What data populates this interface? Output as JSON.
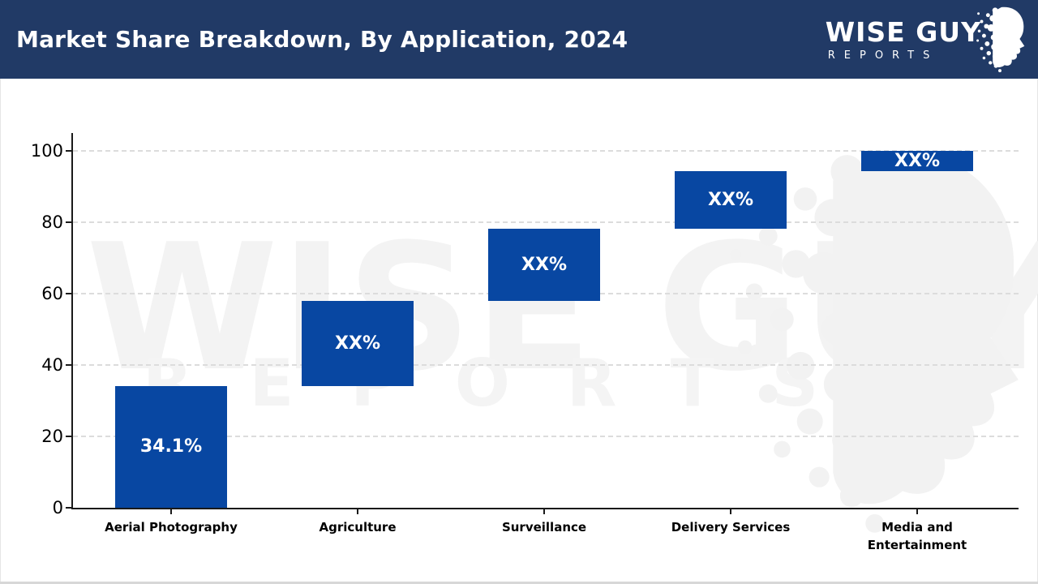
{
  "header": {
    "title": "Market Share Breakdown, By Application, 2024",
    "bg_color": "#213a66",
    "logo": {
      "line1": "WISE GUY",
      "line2": "REPORTS"
    }
  },
  "watermark": {
    "line1": "WISE GUY",
    "line2": "REPORTS"
  },
  "chart_data": {
    "type": "bar",
    "subtype": "waterfall",
    "title": "Market Share Breakdown, By Application, 2024",
    "categories": [
      "Aerial Photography",
      "Agriculture",
      "Surveillance",
      "Delivery Services",
      "Media and Entertainment"
    ],
    "tick_labels": [
      "Aerial Photography",
      "Agriculture",
      "Surveillance",
      "Delivery Services",
      "Media and\nEntertainment"
    ],
    "segments": [
      {
        "category": "Aerial Photography",
        "start": 0,
        "end": 34.1,
        "value": 34.1,
        "label": "34.1%"
      },
      {
        "category": "Agriculture",
        "start": 34.1,
        "end": 58.0,
        "value": 23.9,
        "label": "XX%"
      },
      {
        "category": "Surveillance",
        "start": 58.0,
        "end": 78.1,
        "value": 20.1,
        "label": "XX%"
      },
      {
        "category": "Delivery Services",
        "start": 78.1,
        "end": 94.4,
        "value": 16.3,
        "label": "XX%"
      },
      {
        "category": "Media and Entertainment",
        "start": 94.4,
        "end": 100.0,
        "value": 5.6,
        "label": "XX%"
      }
    ],
    "y_ticks": [
      0,
      20,
      40,
      60,
      80,
      100
    ],
    "ylim": [
      0,
      105
    ],
    "xlabel": "",
    "ylabel": "",
    "bar_color": "#0847a2",
    "grid": "horizontal-dashed",
    "gridline_color": "#dcdcdc",
    "legend": "none"
  }
}
